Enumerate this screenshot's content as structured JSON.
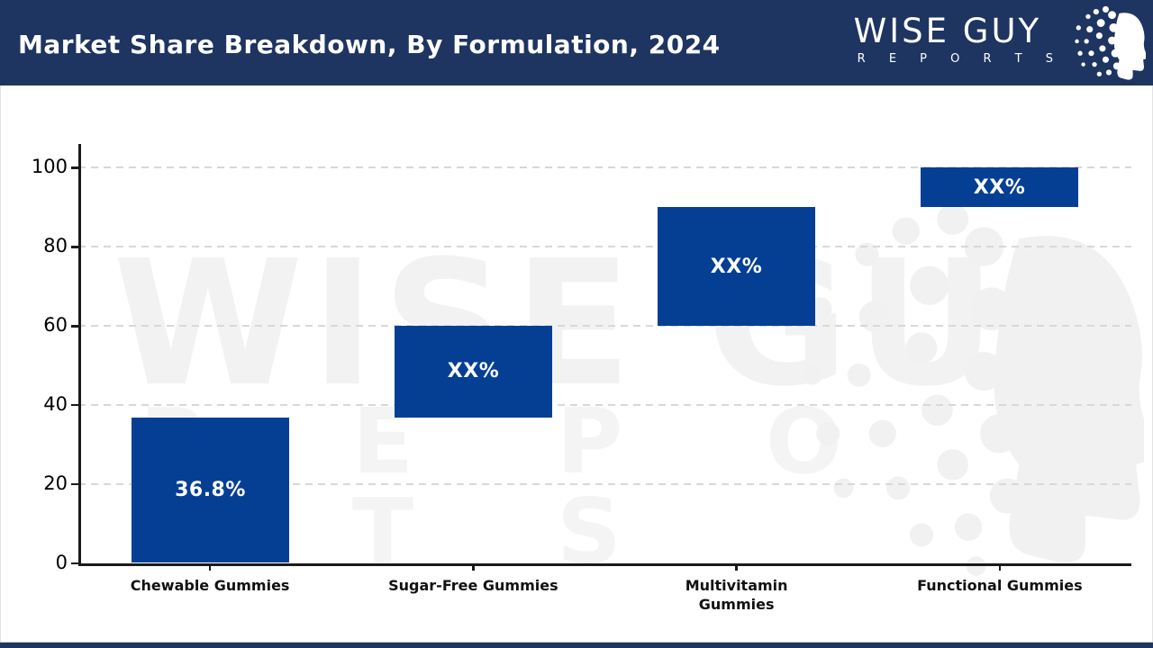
{
  "header": {
    "title": "Market Share Breakdown, By Formulation, 2024",
    "background_color": "#1e3461",
    "logo": {
      "line1": "WISE GUY",
      "line2": "R E P O R T S",
      "icon": "face-dots-logo"
    }
  },
  "watermark": {
    "line1": "WISE GU",
    "line2": "R E P O R T S"
  },
  "chart_data": {
    "type": "bar",
    "variant": "waterfall",
    "title": "Market Share Breakdown, By Formulation, 2024",
    "categories": [
      "Chewable Gummies",
      "Sugar-Free Gummies",
      "Multivitamin\nGummies",
      "Functional Gummies"
    ],
    "series": [
      {
        "name": "Market Share",
        "segments": [
          {
            "category": "Chewable Gummies",
            "start": 0,
            "end": 36.8,
            "label": "36.8%"
          },
          {
            "category": "Sugar-Free Gummies",
            "start": 36.8,
            "end": 60,
            "label": "XX%"
          },
          {
            "category": "Multivitamin Gummies",
            "start": 60,
            "end": 90,
            "label": "XX%"
          },
          {
            "category": "Functional Gummies",
            "start": 90,
            "end": 100,
            "label": "XX%"
          }
        ]
      }
    ],
    "xlabel": "",
    "ylabel": "",
    "ylim": [
      0,
      106
    ],
    "yticks": [
      0,
      20,
      40,
      60,
      80,
      100
    ],
    "grid": "horizontal-dashed",
    "legend": "none",
    "bar_color": "#043f94",
    "bar_label_color": "#ffffff",
    "grid_color": "#d8d8d8",
    "axis_color": "#1a1a1a"
  }
}
